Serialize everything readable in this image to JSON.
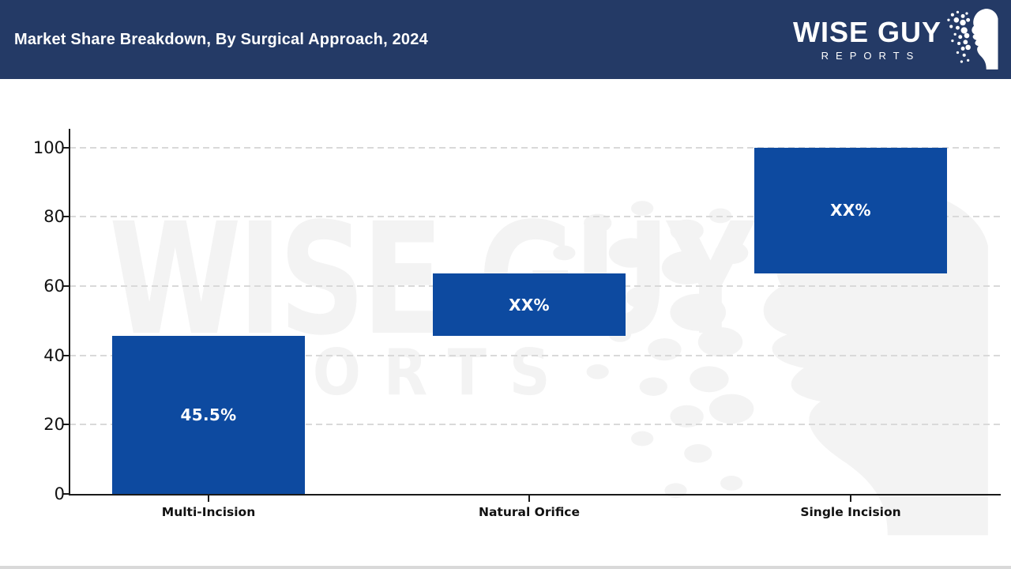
{
  "header": {
    "title": "Market Share Breakdown, By Surgical Approach, 2024",
    "logo": {
      "name": "WISE GUY",
      "sub": "REPORTS"
    }
  },
  "watermark": {
    "name": "WISE GUY",
    "sub": "REPORTS"
  },
  "colors": {
    "header_bg": "#243a66",
    "bar_blue": "#0d4aa0",
    "gridline": "#d9d9d9",
    "axis": "#1a1a1a",
    "value_label": "#ffffff",
    "watermark": "#f3f3f3",
    "footer_strip": "#d9d9d9"
  },
  "chart_data": {
    "type": "bar",
    "subtype": "floating-segment-waterfall",
    "title": "Market Share Breakdown, By Surgical Approach, 2024",
    "categories": [
      "Multi-Incision",
      "Natural Orifice",
      "Single Incision"
    ],
    "bars": [
      {
        "category": "Multi-Incision",
        "start": 0,
        "end": 45.5,
        "label": "45.5%"
      },
      {
        "category": "Natural Orifice",
        "start": 45.5,
        "end": 63.6,
        "label": "XX%"
      },
      {
        "category": "Single Incision",
        "start": 63.6,
        "end": 100,
        "label": "XX%"
      }
    ],
    "xlabel": "",
    "ylabel": "",
    "yticks": [
      0,
      20,
      40,
      60,
      80,
      100
    ],
    "ylim": [
      0,
      105
    ],
    "grid": "horizontal-dashed",
    "legend": "none",
    "bar_color": "#0d4aa0",
    "value_labels_inside_bars": true
  }
}
